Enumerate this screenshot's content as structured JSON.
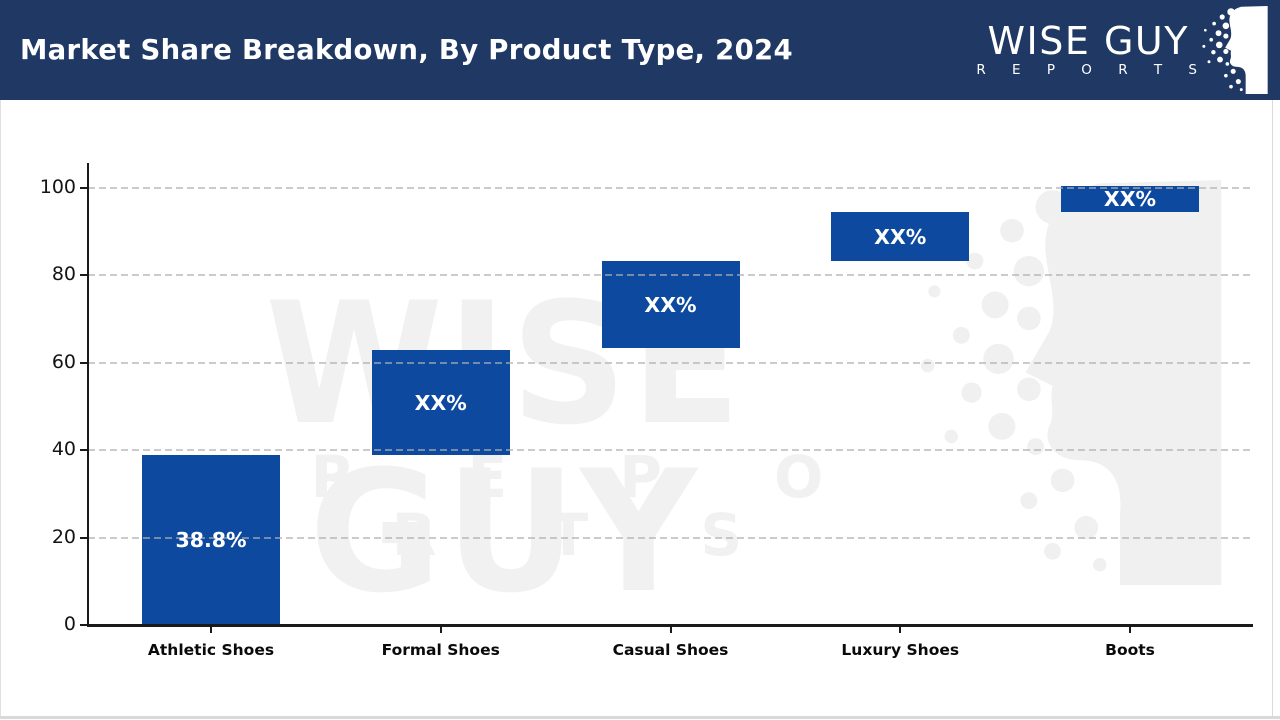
{
  "header": {
    "title": "Market Share Breakdown, By Product Type, 2024",
    "bg_color": "#1f3864",
    "logo": {
      "line1": "WISE GUY",
      "line2": "R E P O R T S"
    }
  },
  "watermark": {
    "line1": "WISE GUY",
    "line2": "R E P O R T S"
  },
  "chart_data": {
    "type": "bar",
    "subtype": "waterfall",
    "title": "Market Share Breakdown, By Product Type, 2024",
    "categories": [
      "Athletic Shoes",
      "Formal Shoes",
      "Casual Shoes",
      "Luxury Shoes",
      "Boots"
    ],
    "segments": [
      {
        "category": "Athletic Shoes",
        "base": 0,
        "top": 38.8,
        "label": "38.8%"
      },
      {
        "category": "Formal Shoes",
        "base": 38.8,
        "top": 63.0,
        "label": "XX%"
      },
      {
        "category": "Casual Shoes",
        "base": 63.3,
        "top": 83.3,
        "label": "XX%"
      },
      {
        "category": "Luxury Shoes",
        "base": 83.3,
        "top": 94.5,
        "label": "XX%"
      },
      {
        "category": "Boots",
        "base": 94.5,
        "top": 100.5,
        "label": "XX%"
      }
    ],
    "yticks": [
      0,
      20,
      40,
      60,
      80,
      100
    ],
    "ylim": [
      0,
      105.7
    ],
    "xlabel": "",
    "ylabel": "",
    "grid": "horizontal-dashed",
    "legend": "none",
    "bar_color": "#0d4a9f",
    "bar_label_color": "#ffffff",
    "axis_color": "#1a1a1a",
    "grid_color": "#c9c9c9"
  }
}
